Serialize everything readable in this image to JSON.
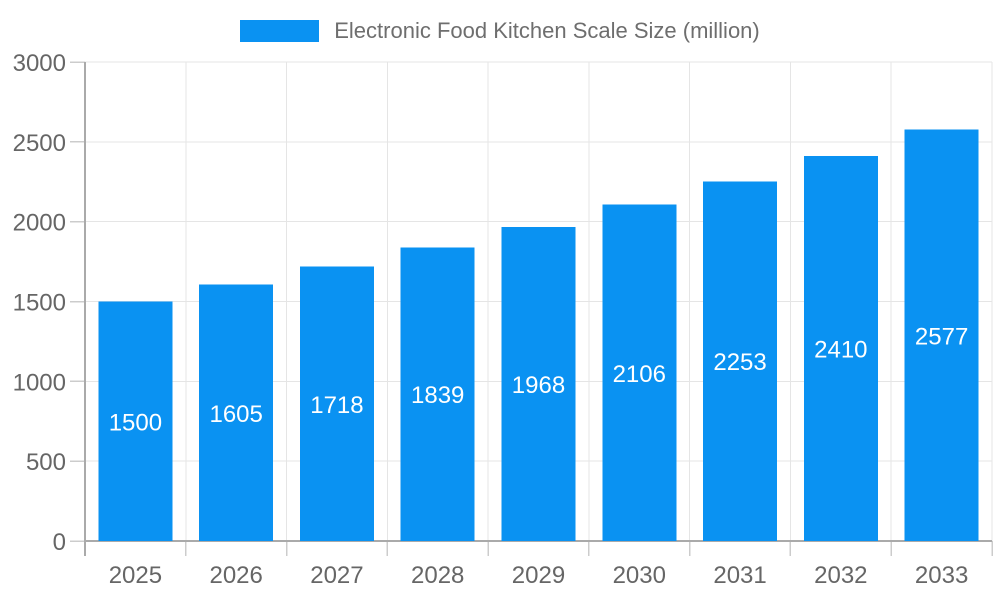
{
  "chart_data": {
    "type": "bar",
    "title": "Electronic Food Kitchen Scale Size (million)",
    "legend": [
      "Electronic Food Kitchen Scale Size (million)"
    ],
    "legend_position": "top",
    "categories": [
      "2025",
      "2026",
      "2027",
      "2028",
      "2029",
      "2030",
      "2031",
      "2032",
      "2033"
    ],
    "values": [
      1500,
      1605,
      1718,
      1839,
      1968,
      2106,
      2253,
      2410,
      2577
    ],
    "xlabel": "",
    "ylabel": "",
    "ylim": [
      0,
      3000
    ],
    "ytick_step": 500,
    "yticks": [
      0,
      500,
      1000,
      1500,
      2000,
      2500,
      3000
    ],
    "grid": true,
    "bar_color": "#0a92f2",
    "bar_label_color": "#ffffff",
    "axis_label_color": "#666666",
    "legend_text_color": "#6e6e6e",
    "grid_color": "#e5e5e5",
    "axis_line_color": "#aaaaaa",
    "tick_color": "#cccccc"
  }
}
